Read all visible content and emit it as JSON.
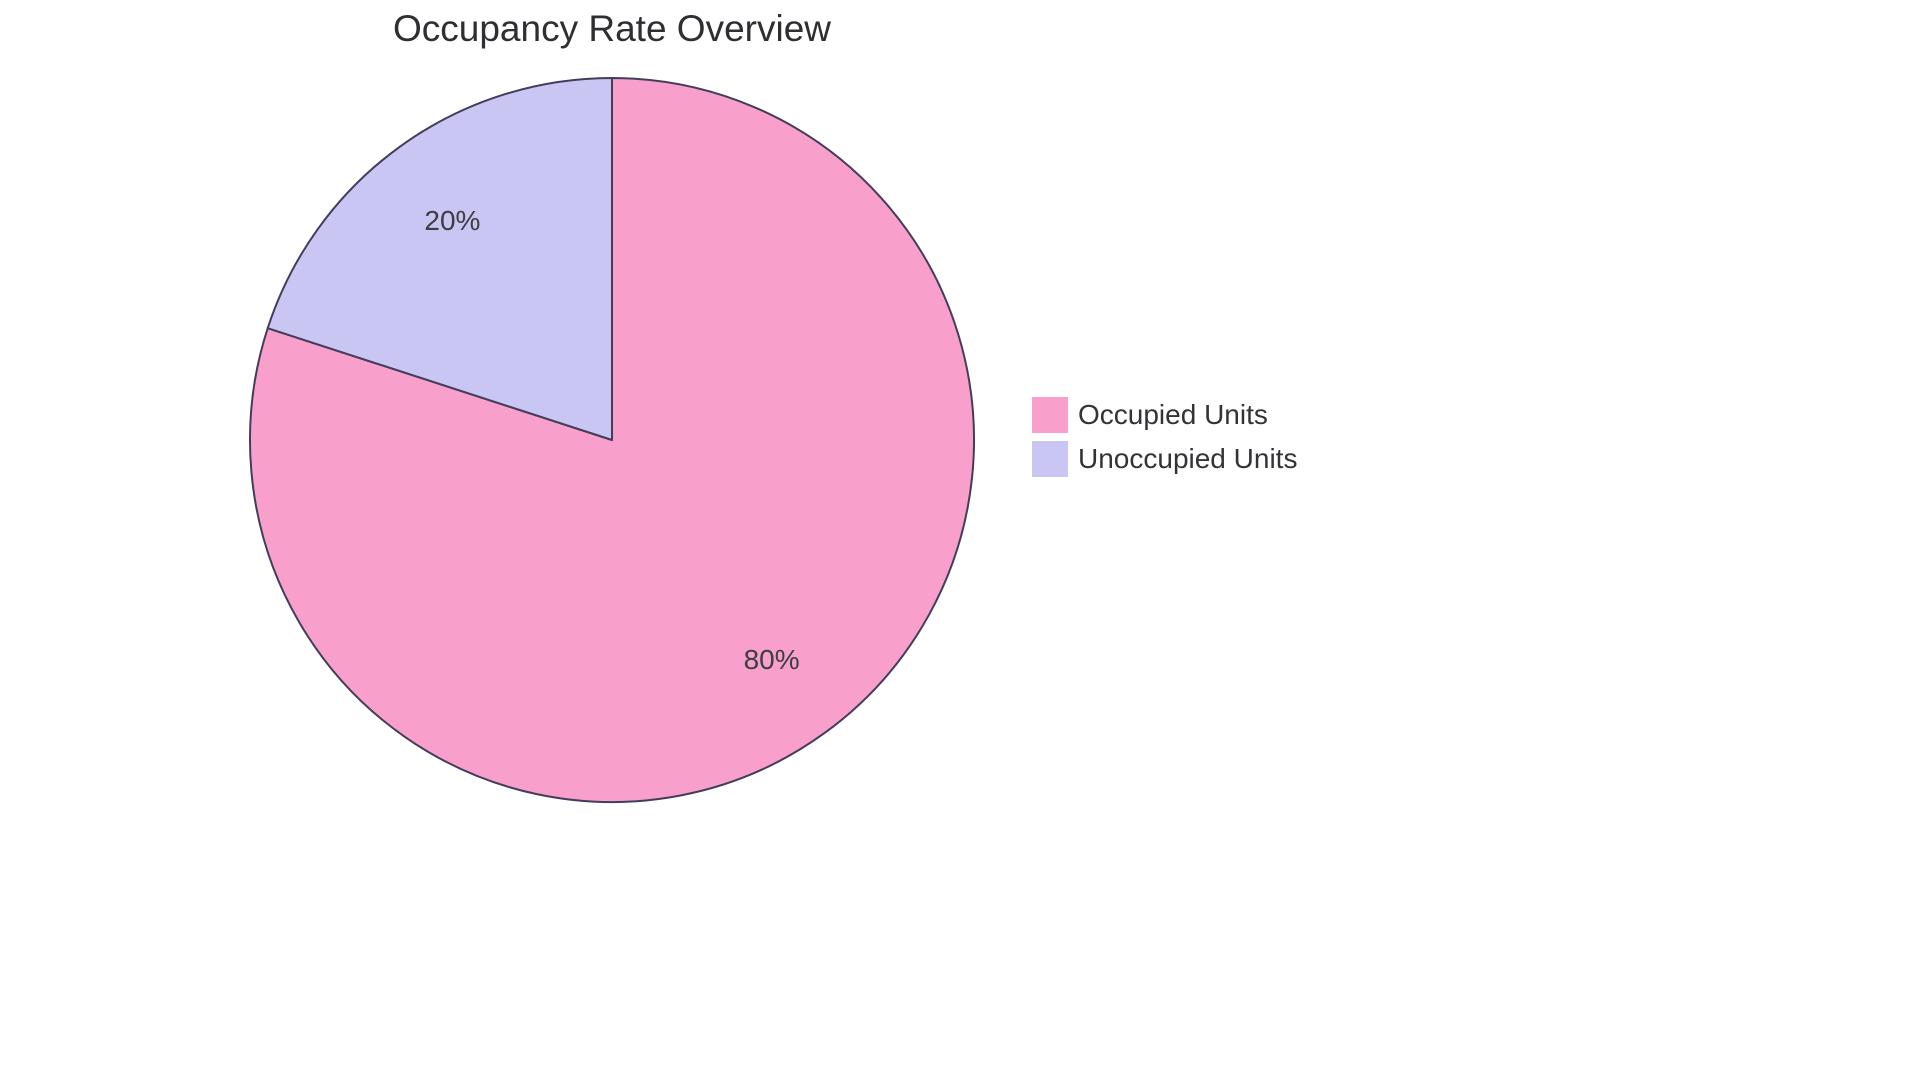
{
  "chart_data": {
    "type": "pie",
    "title": "Occupancy Rate Overview",
    "labels": [
      "Occupied Units",
      "Unoccupied Units"
    ],
    "values": [
      80,
      20
    ],
    "slice_labels": [
      "80%",
      "20%"
    ],
    "colors": [
      "#F8A0CB",
      "#CAC6F4"
    ],
    "stroke_color": "#433D5C",
    "text_color": "#3d3d42",
    "legend_position": "right",
    "start_angle_deg": 0,
    "direction": "clockwise"
  }
}
